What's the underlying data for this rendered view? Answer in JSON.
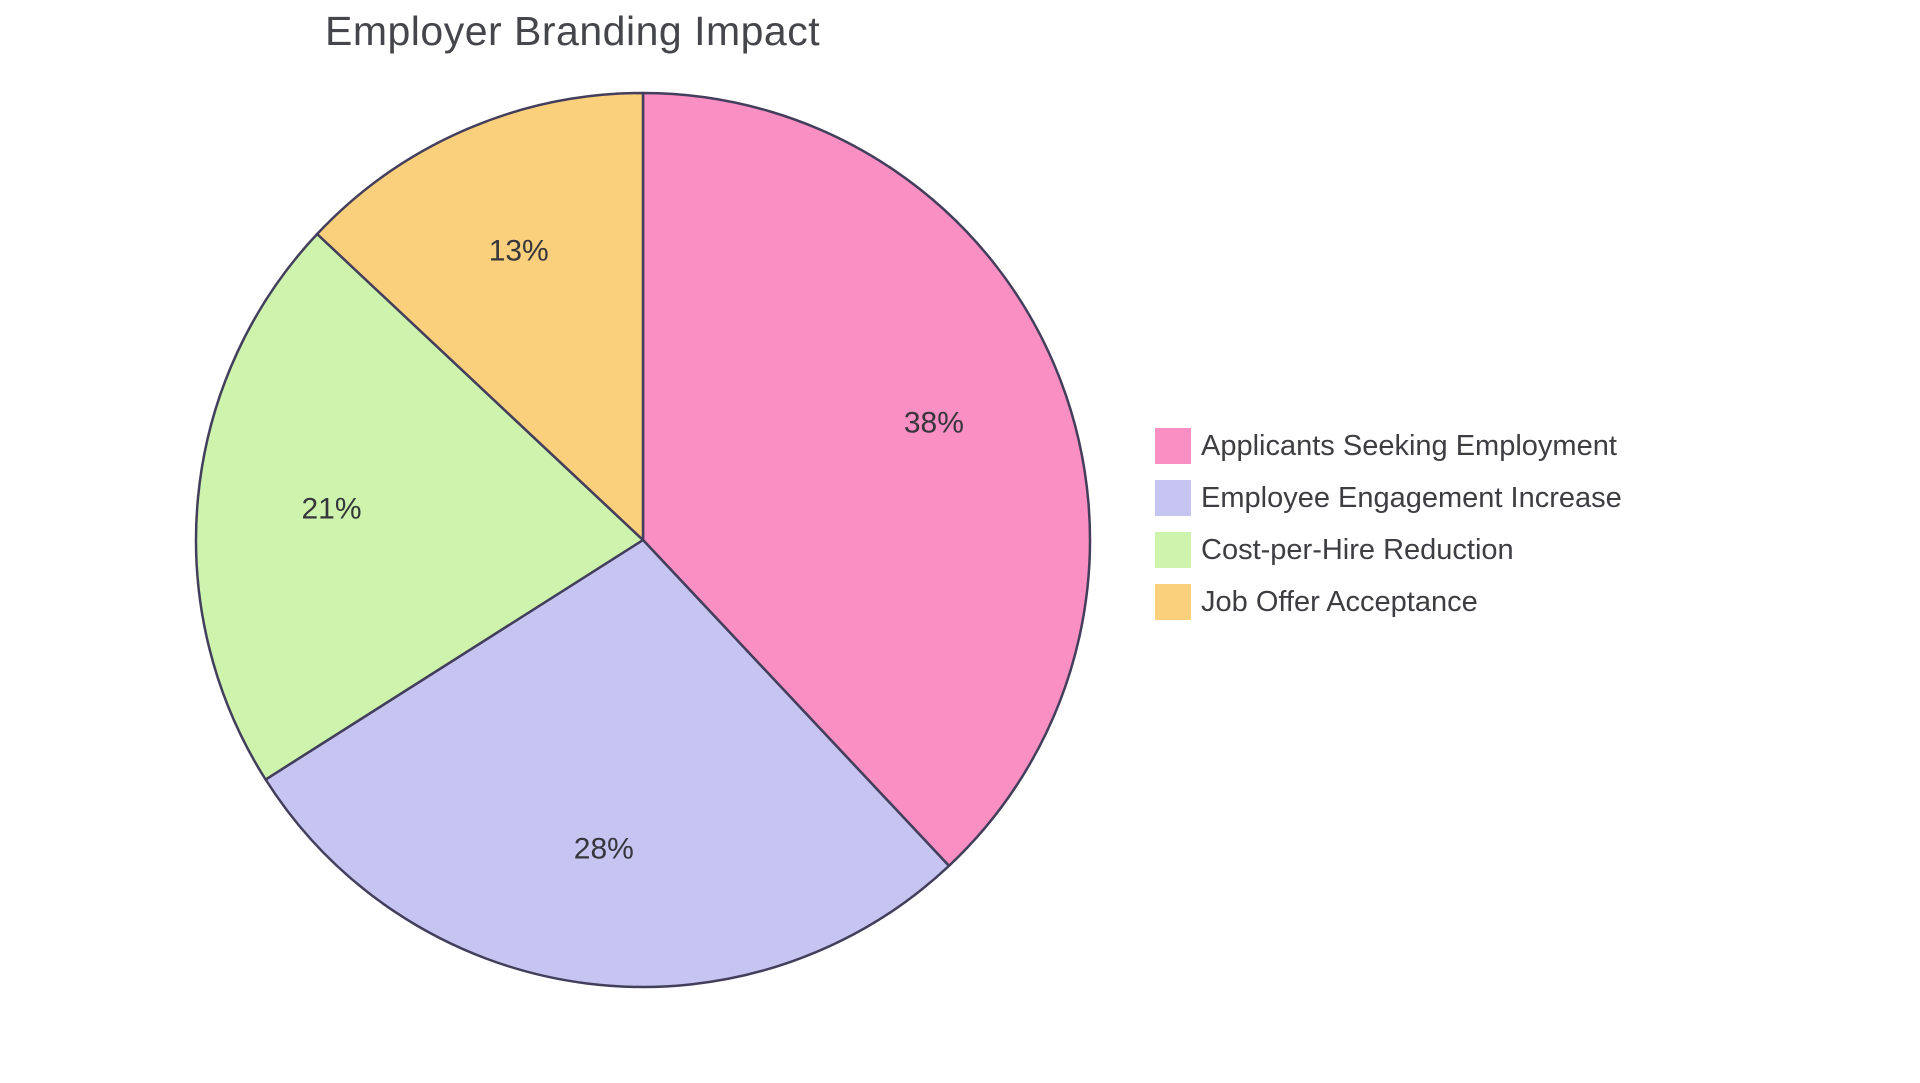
{
  "title": "Employer Branding Impact",
  "chart_data": {
    "type": "pie",
    "title": "Employer Branding Impact",
    "labels": [
      "Applicants Seeking Employment",
      "Employee Engagement Increase",
      "Cost-per-Hire Reduction",
      "Job Offer Acceptance"
    ],
    "values": [
      38,
      28,
      21,
      13
    ],
    "value_labels": [
      "38%",
      "28%",
      "21%",
      "13%"
    ],
    "colors": [
      "#F98FC2",
      "#C6C4F0",
      "#CDF3AC",
      "#FBD07C"
    ],
    "stroke_color": "#433E5C",
    "stroke_width": 2.5,
    "start_angle_deg": -90,
    "direction": "clockwise",
    "legend_position": "right",
    "label_color": "#36363c",
    "title_color": "#45464b",
    "background": "#FFFFFF"
  }
}
